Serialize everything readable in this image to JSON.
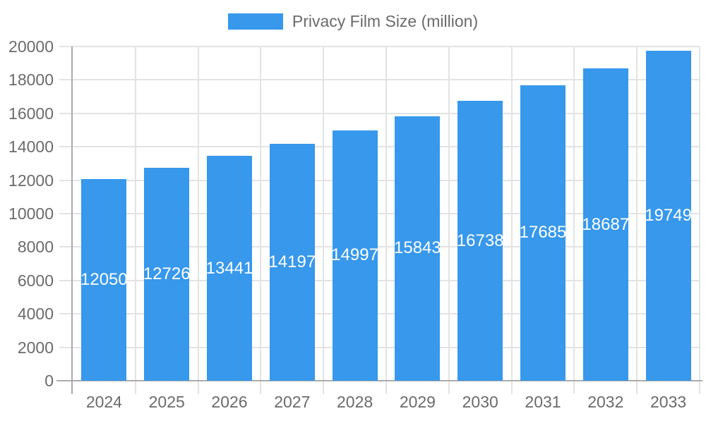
{
  "legend": {
    "label": "Privacy Film Size (million)"
  },
  "chart_data": {
    "type": "bar",
    "title": "Privacy Film Size (million)",
    "series_name": "Privacy Film Size (million)",
    "categories": [
      "2024",
      "2025",
      "2026",
      "2027",
      "2028",
      "2029",
      "2030",
      "2031",
      "2032",
      "2033"
    ],
    "values": [
      12050,
      12726,
      13441,
      14197,
      14997,
      15843,
      16738,
      17685,
      18687,
      19749
    ],
    "xlabel": "",
    "ylabel": "",
    "ylim": [
      0,
      20000
    ],
    "ytick_step": 2000,
    "yticks": [
      0,
      2000,
      4000,
      6000,
      8000,
      10000,
      12000,
      14000,
      16000,
      18000,
      20000
    ],
    "grid": true,
    "legend_position": "top",
    "value_labels": "inside-center-white",
    "bar_color": "#3798ec",
    "value_label_color": "#ffffff",
    "axis_text_color": "#6b6b6b",
    "axis_line_color": "#ababab",
    "gridline_color": "#e3e3e3",
    "background_color": "#ffffff"
  }
}
